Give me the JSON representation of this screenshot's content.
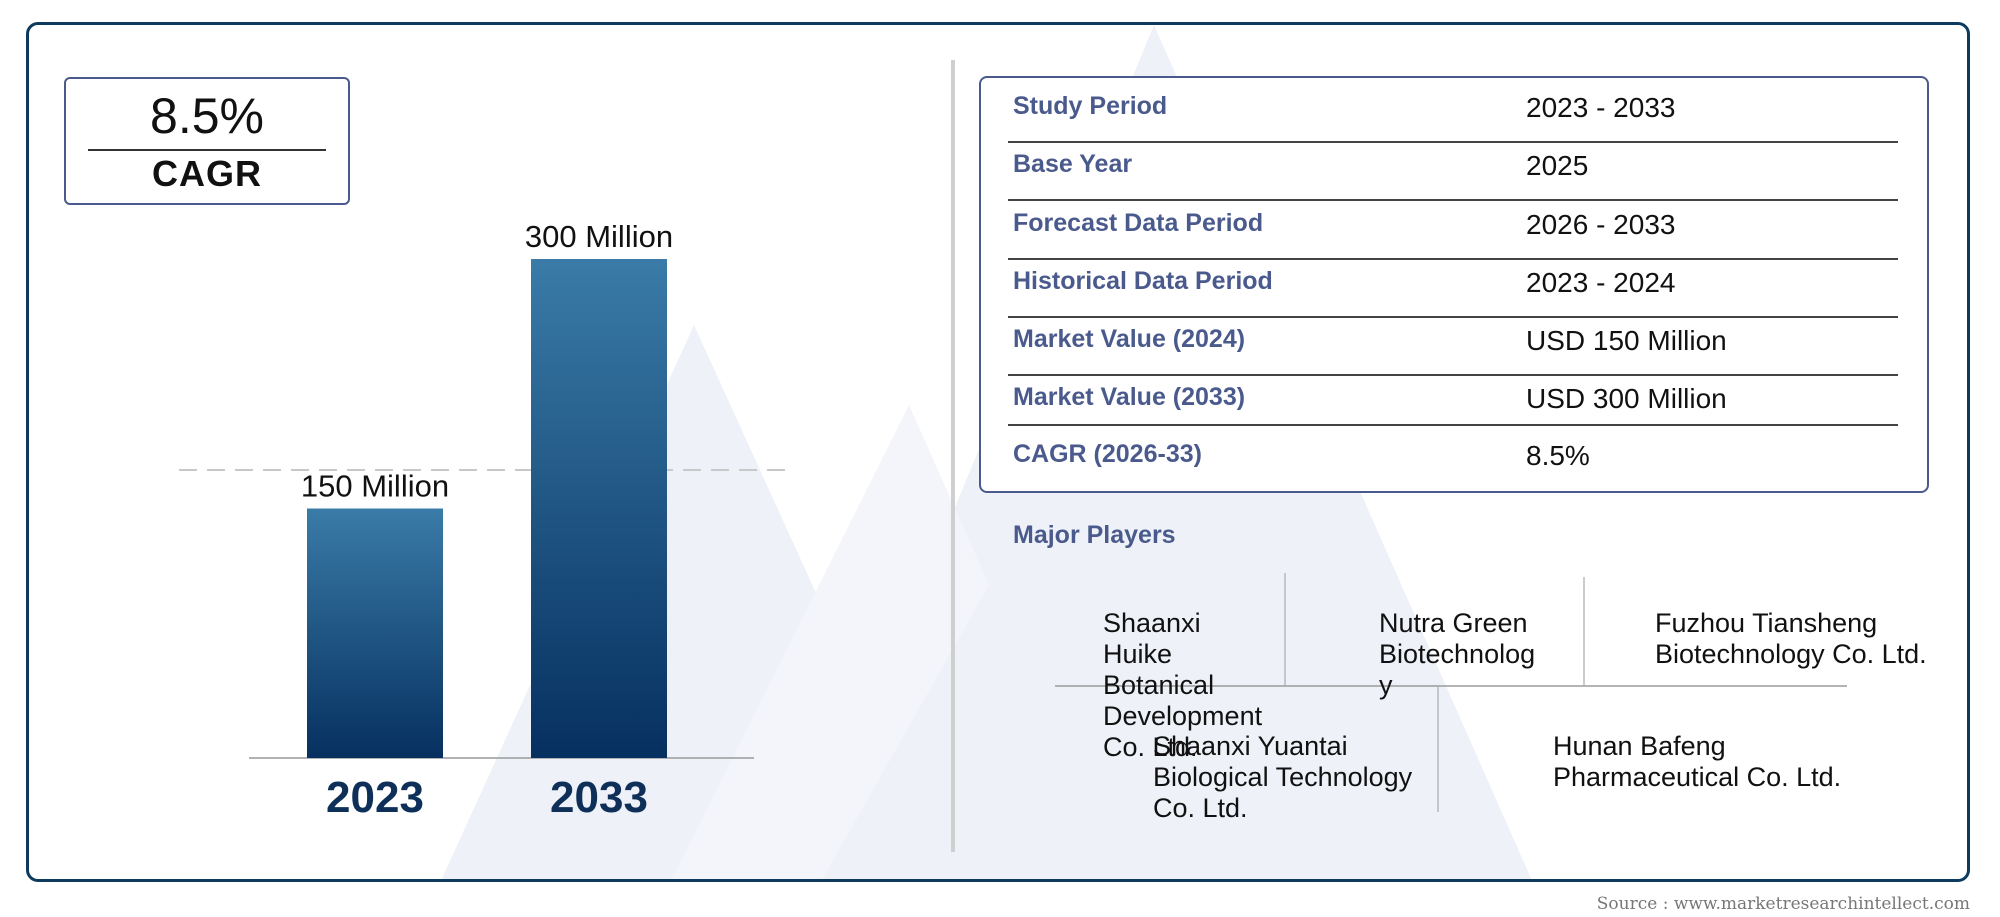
{
  "summary": {
    "cagr_value": "8.5%",
    "cagr_label": "CAGR"
  },
  "chart_data": {
    "type": "bar",
    "categories": [
      "2023",
      "2033"
    ],
    "values": [
      150,
      300
    ],
    "value_labels": [
      "150 Million",
      "300 Million"
    ],
    "ylim": [
      0,
      300
    ]
  },
  "info_table": [
    {
      "label": "Study Period",
      "value": "2023 - 2033"
    },
    {
      "label": "Base Year",
      "value": "2025"
    },
    {
      "label": "Forecast Data Period",
      "value": "2026 - 2033"
    },
    {
      "label": "Historical Data Period",
      "value": "2023 - 2024"
    },
    {
      "label": "Market Value (2024)",
      "value": "USD 150 Million"
    },
    {
      "label": "Market Value (2033)",
      "value": "USD 300 Million"
    },
    {
      "label": "CAGR (2026-33)",
      "value": "8.5%"
    }
  ],
  "players": {
    "title": "Major Players",
    "items": [
      "Shaanxi\nHuike\nBotanical\nDevelopment\nCo. Ltd.",
      "Nutra Green\nBiotechnolog\ny",
      "Fuzhou Tiansheng\nBiotechnology Co. Ltd.",
      "Shaanxi Yuantai\nBiological Technology\nCo. Ltd.",
      "Hunan Bafeng\nPharmaceutical Co. Ltd."
    ]
  },
  "colors": {
    "bar_top": "#3a7ba8",
    "bar_bottom": "#06305f",
    "accent": "#4a5a8c",
    "year_label": "#0d2f58"
  },
  "source": "Source : www.marketresearchintellect.com"
}
